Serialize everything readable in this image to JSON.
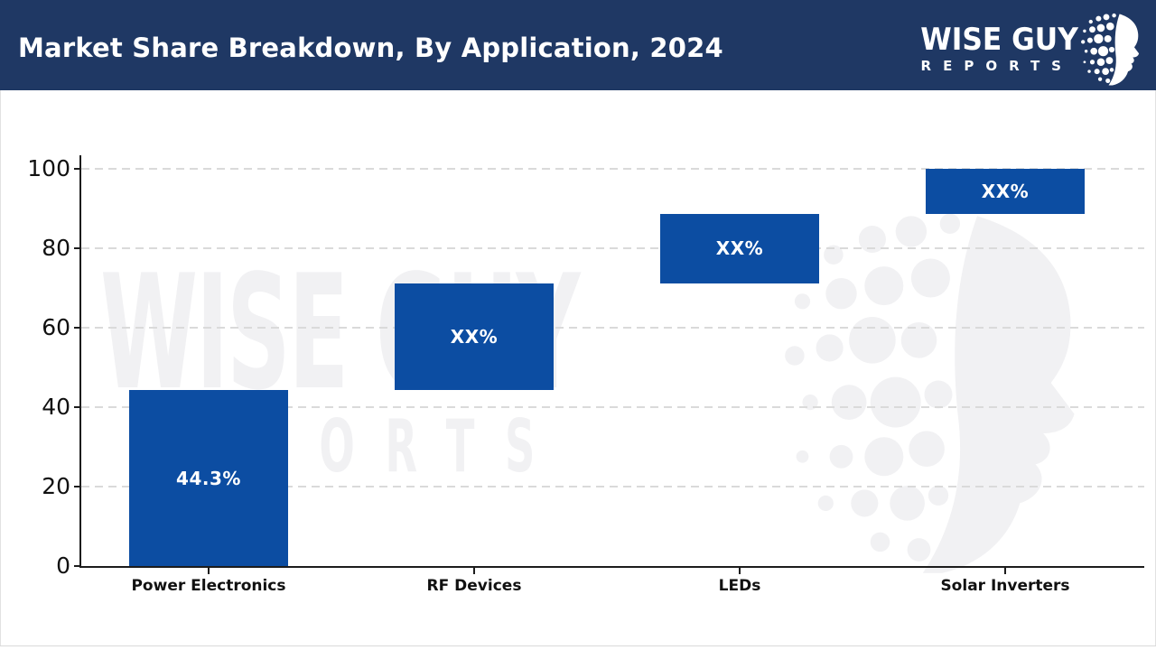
{
  "header": {
    "title": "Market Share Breakdown, By Application, 2024"
  },
  "logo": {
    "line1": "WISE GUY",
    "line2": "REPORTS"
  },
  "watermark": {
    "line1": "WISE GUY",
    "line2": "REPORTS"
  },
  "icons": {
    "logo_head": "wise-guy-head-icon",
    "watermark_head": "wise-guy-head-icon"
  },
  "chart_data": {
    "type": "bar",
    "subtype": "waterfall-breakdown",
    "title": "Market Share Breakdown, By Application, 2024",
    "categories": [
      "Power Electronics",
      "RF Devices",
      "LEDs",
      "Solar Inverters"
    ],
    "segments": [
      {
        "category": "Power Electronics",
        "base": 0,
        "value": 44.3,
        "label": "44.3%"
      },
      {
        "category": "RF Devices",
        "base": 44.3,
        "value": 26.8,
        "label": "XX%"
      },
      {
        "category": "LEDs",
        "base": 71.1,
        "value": 17.6,
        "label": "XX%"
      },
      {
        "category": "Solar Inverters",
        "base": 88.7,
        "value": 11.3,
        "label": "XX%"
      }
    ],
    "yticks": [
      0,
      20,
      40,
      60,
      80,
      100
    ],
    "ylim": [
      0,
      103
    ],
    "xlabel": "",
    "ylabel": "",
    "grid": "horizontal-dashed",
    "legend": false
  },
  "colors": {
    "header_bg": "#1f3864",
    "bar": "#0c4da2",
    "bar_label": "#ffffff",
    "grid": "#dadada",
    "axis": "#1c1c1c",
    "watermark": "#f1f1f3"
  }
}
